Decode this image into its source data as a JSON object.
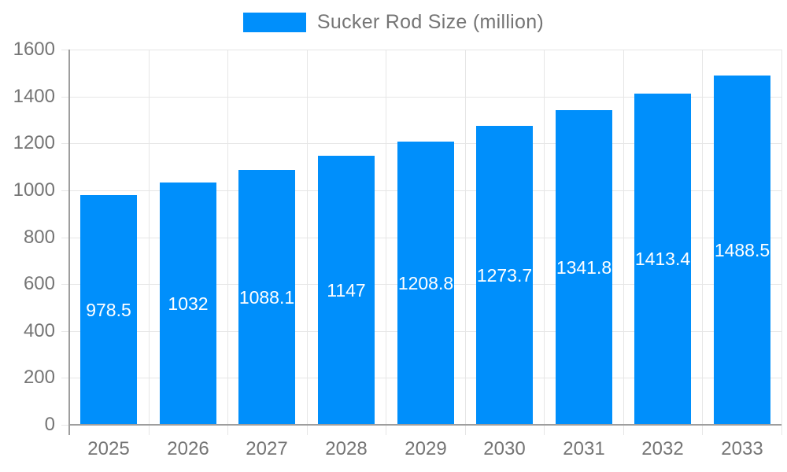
{
  "legend": {
    "label": "Sucker Rod Size (million)"
  },
  "chart_data": {
    "type": "bar",
    "title": "",
    "categories": [
      "2025",
      "2026",
      "2027",
      "2028",
      "2029",
      "2030",
      "2031",
      "2032",
      "2033"
    ],
    "series": [
      {
        "name": "Sucker Rod Size (million)",
        "color": "#008ffb",
        "values": [
          978.5,
          1032,
          1088.1,
          1147,
          1208.8,
          1273.7,
          1341.8,
          1413.4,
          1488.5
        ]
      }
    ],
    "xlabel": "",
    "ylabel": "",
    "ylim": [
      0,
      1600
    ],
    "ytick_step": 200,
    "yticks": [
      0,
      200,
      400,
      600,
      800,
      1000,
      1200,
      1400,
      1600
    ],
    "grid": true,
    "legend_position": "top-center",
    "data_labels": "inside-center-white",
    "colors": {
      "bar": "#008ffb",
      "axis_text": "#757575",
      "gridline": "#e6e6e6",
      "axis_line": "#9e9e9e",
      "background": "#ffffff"
    }
  }
}
